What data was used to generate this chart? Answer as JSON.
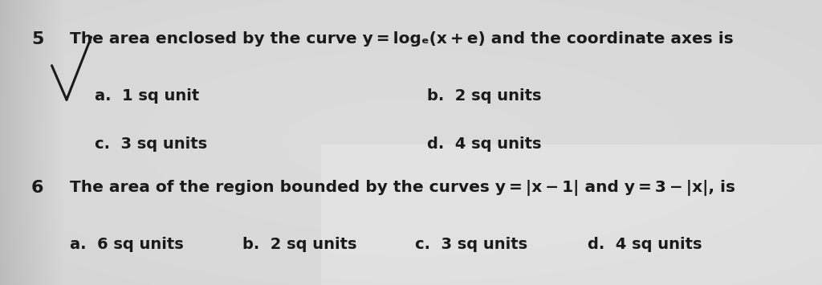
{
  "background_color": "#d8d8d8",
  "q5_number": "5",
  "q5_question_part1": "The area enclosed by the curve ",
  "q5_question_math": "y = log",
  "q5_question_part2": "e",
  "q5_question_part3": "(x + e)",
  "q5_question_part4": " and the coordinate axes is",
  "q5_options": [
    {
      "label": "a.",
      "text": "1 sq unit",
      "col": 0,
      "row": 0,
      "checked": true
    },
    {
      "label": "b.",
      "text": "2 sq units",
      "col": 1,
      "row": 0,
      "checked": false
    },
    {
      "label": "c.",
      "text": "3 sq units",
      "col": 0,
      "row": 1,
      "checked": false
    },
    {
      "label": "d.",
      "text": "4 sq units",
      "col": 1,
      "row": 1,
      "checked": false
    }
  ],
  "q6_number": "6",
  "q6_question": "The area of the region bounded by the curves y = |x − 1| and y = 3 − |x|, is",
  "q6_options": [
    {
      "label": "a.",
      "text": "6 sq units",
      "col": 0
    },
    {
      "label": "b.",
      "text": "2 sq units",
      "col": 1
    },
    {
      "label": "c.",
      "text": "3 sq units",
      "col": 2
    },
    {
      "label": "d.",
      "text": "4 sq units",
      "col": 3
    }
  ],
  "text_color": "#1a1a1a",
  "font_size_question": 14.5,
  "font_size_option": 14.0,
  "font_size_number": 16
}
